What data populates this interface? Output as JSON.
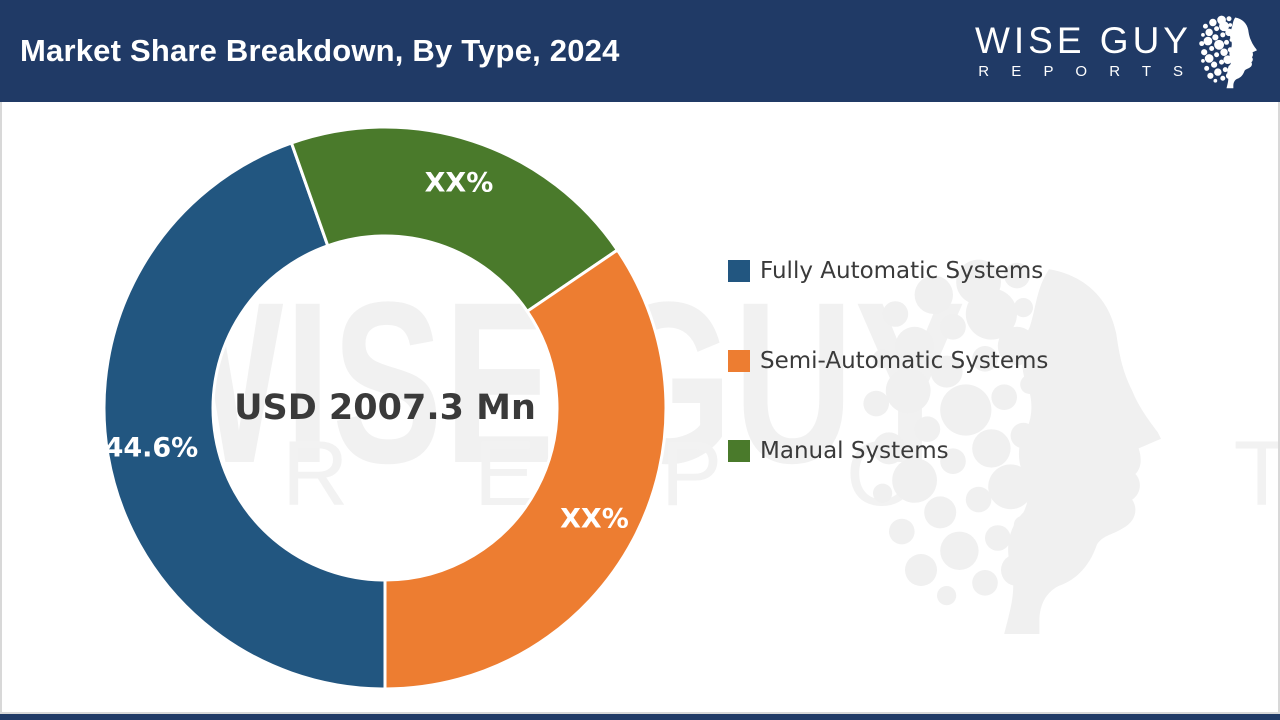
{
  "header": {
    "title": "Market Share Breakdown, By Type, 2024",
    "bg_color": "#203A66",
    "logo": {
      "line1": "WISE GUY",
      "line2": "R E P O R T S"
    }
  },
  "watermark": {
    "line1": "WISE GUY",
    "line2": "R E P O R T S"
  },
  "chart_data": {
    "type": "pie",
    "subtype": "donut",
    "title": "Market Share Breakdown, By Type, 2024",
    "center_label": "USD 2007.3 Mn",
    "start_angle_screen_deg": 90,
    "direction": "clockwise",
    "outer_radius_px": 281,
    "inner_radius_px": 172,
    "segments": [
      {
        "name": "Fully Automatic Systems",
        "display_label": "44.6%",
        "value_pct": 44.6,
        "color": "#225680",
        "label_color": "#ffffff"
      },
      {
        "name": "Manual Systems",
        "display_label": "XX%",
        "value_pct": 20.9,
        "color": "#4A7A2B",
        "label_color": "#ffffff"
      },
      {
        "name": "Semi-Automatic Systems",
        "display_label": "XX%",
        "value_pct": 34.5,
        "color": "#ED7D31",
        "label_color": "#ffffff"
      }
    ],
    "legend_position": "right",
    "legend": [
      {
        "label": "Fully Automatic Systems",
        "color": "#225680"
      },
      {
        "label": "Semi-Automatic Systems",
        "color": "#ED7D31"
      },
      {
        "label": "Manual Systems",
        "color": "#4A7A2B"
      }
    ]
  }
}
